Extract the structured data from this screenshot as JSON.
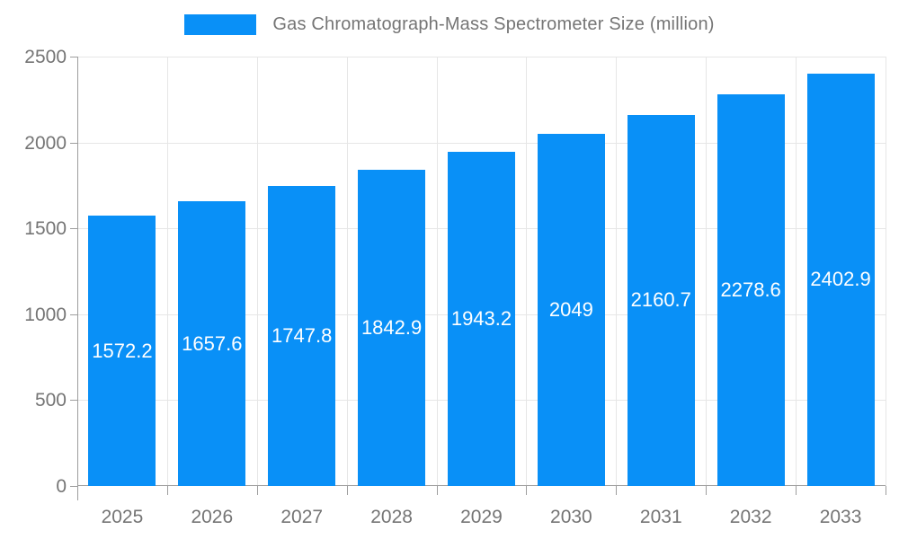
{
  "chart_data": {
    "type": "bar",
    "title": "Gas Chromatograph-Mass Spectrometer Size (million)",
    "categories": [
      "2025",
      "2026",
      "2027",
      "2028",
      "2029",
      "2030",
      "2031",
      "2032",
      "2033"
    ],
    "values": [
      1572.2,
      1657.6,
      1747.8,
      1842.9,
      1943.2,
      2049,
      2160.7,
      2278.6,
      2402.9
    ],
    "xlabel": "",
    "ylabel": "",
    "ylim": [
      0,
      2500
    ],
    "yticks": [
      0,
      500,
      1000,
      1500,
      2000,
      2500
    ],
    "grid": true,
    "legend_position": "top-center",
    "colors": {
      "bar": "#0990f7",
      "bar_label": "#ffffff",
      "axis_text": "#757575",
      "grid": "#e6e6e6",
      "axis_line": "#9e9e9e",
      "background": "#ffffff"
    }
  }
}
